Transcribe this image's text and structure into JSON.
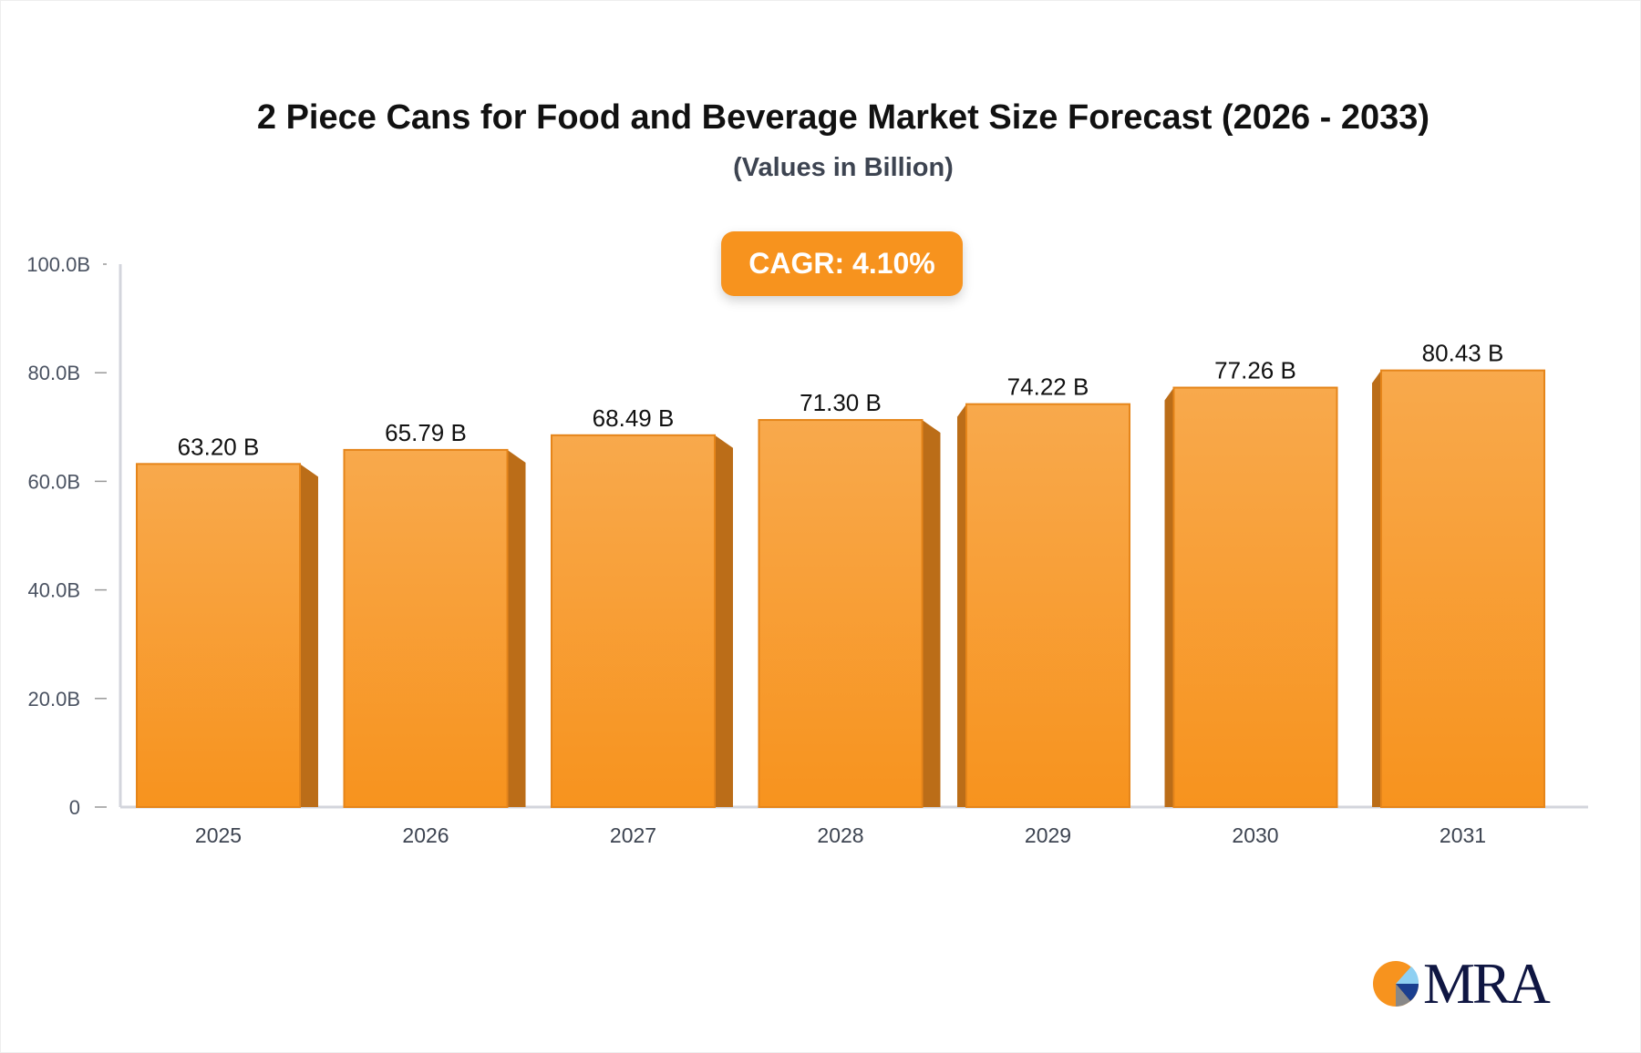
{
  "chart_data": {
    "type": "bar",
    "title": "2 Piece Cans for Food and Beverage Market Size Forecast (2026 - 2033)",
    "subtitle": "(Values in Billion)",
    "annotation": "CAGR: 4.10%",
    "categories": [
      "2025",
      "2026",
      "2027",
      "2028",
      "2029",
      "2030",
      "2031"
    ],
    "values": [
      63.2,
      65.79,
      68.49,
      71.3,
      74.22,
      77.26,
      80.43
    ],
    "data_labels": [
      "63.20 B",
      "65.79 B",
      "68.49 B",
      "71.30 B",
      "74.22 B",
      "77.26 B",
      "80.43 B"
    ],
    "yticks": [
      0,
      20,
      40,
      60,
      80,
      100
    ],
    "ytick_labels": [
      "0",
      "20.0B",
      "40.0B",
      "60.0B",
      "80.0B",
      "100.0B"
    ],
    "ylim": [
      0,
      100
    ],
    "grid": false,
    "bar_color": "#f7931e",
    "bar_side_color": "#bb6d18"
  },
  "logo": {
    "text": "MRA",
    "colors": [
      "#f7931e",
      "#8fd0f2",
      "#1b3f8f",
      "#888888"
    ]
  }
}
